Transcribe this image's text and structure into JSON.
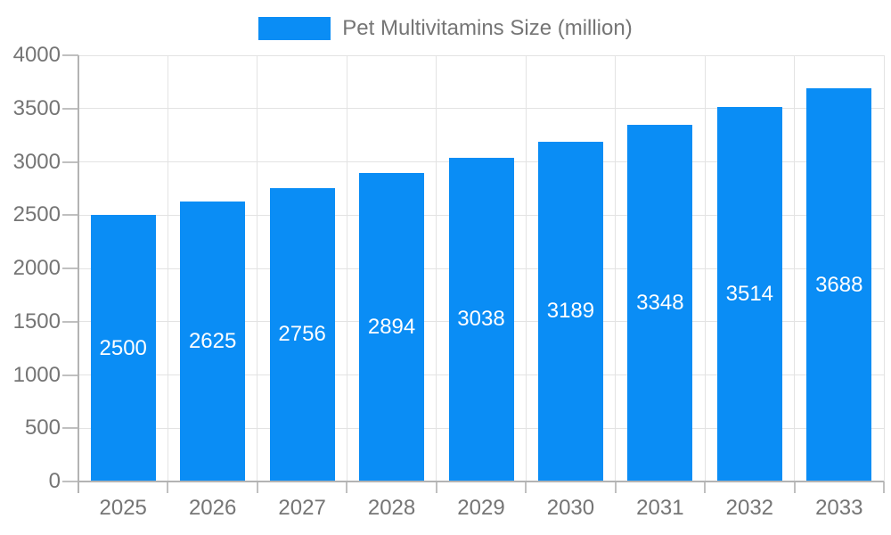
{
  "legend": {
    "label": "Pet Multivitamins Size (million)"
  },
  "colors": {
    "bar": "#0a8df5",
    "bar_label": "#ffffff",
    "axis_label": "#757575",
    "axis_line": "#b3b3b3",
    "tick": "#c0c0c0",
    "grid_line": "#e3e3e3",
    "background": "#ffffff"
  },
  "chart_data": {
    "type": "bar",
    "title": "Pet Multivitamins Size (million)",
    "series_name": "Pet Multivitamins Size (million)",
    "categories": [
      "2025",
      "2026",
      "2027",
      "2028",
      "2029",
      "2030",
      "2031",
      "2032",
      "2033"
    ],
    "values": [
      2500,
      2625,
      2756,
      2894,
      3038,
      3189,
      3348,
      3514,
      3688
    ],
    "xlabel": "",
    "ylabel": "",
    "ylim": [
      0,
      4000
    ],
    "yticks": [
      0,
      500,
      1000,
      1500,
      2000,
      2500,
      3000,
      3500,
      4000
    ],
    "grid": true,
    "legend_position": "top-center",
    "bar_labels": "inside-center-white"
  }
}
